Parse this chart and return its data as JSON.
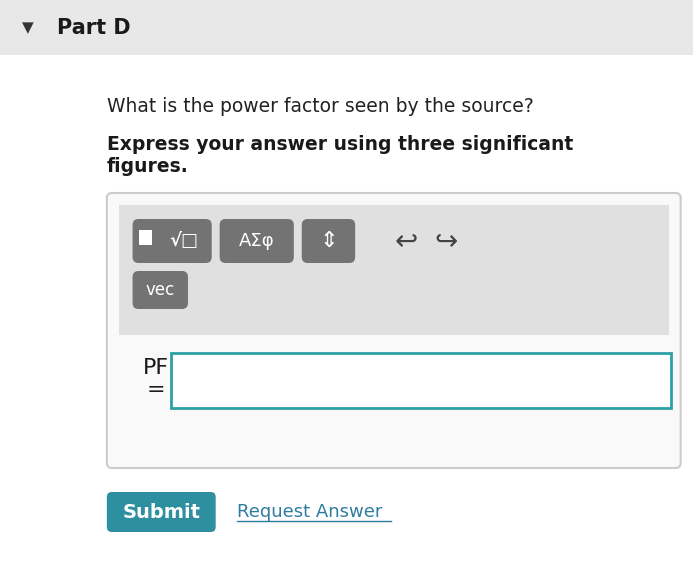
{
  "bg_color": "#f5f5f5",
  "header_bg": "#e8e8e8",
  "header_text": "Part D",
  "header_triangle": "▼",
  "question_text": "What is the power factor seen by the source?",
  "bold_text_line1": "Express your answer using three significant",
  "bold_text_line2": "figures.",
  "btn2_label": "AΣφ",
  "btn3_label": "⇕",
  "btn_vec_label": "vec",
  "btn_color": "#737373",
  "btn_text_color": "#ffffff",
  "arrow_left": "↩",
  "arrow_right": "↪",
  "input_label_line1": "PF",
  "input_label_line2": "=",
  "input_bg": "#ffffff",
  "input_border": "#2e9fa5",
  "submit_bg": "#2e8fa0",
  "submit_text": "Submit",
  "submit_text_color": "#ffffff",
  "request_text": "Request Answer",
  "request_text_color": "#2e7da0",
  "white_bg": "#ffffff"
}
